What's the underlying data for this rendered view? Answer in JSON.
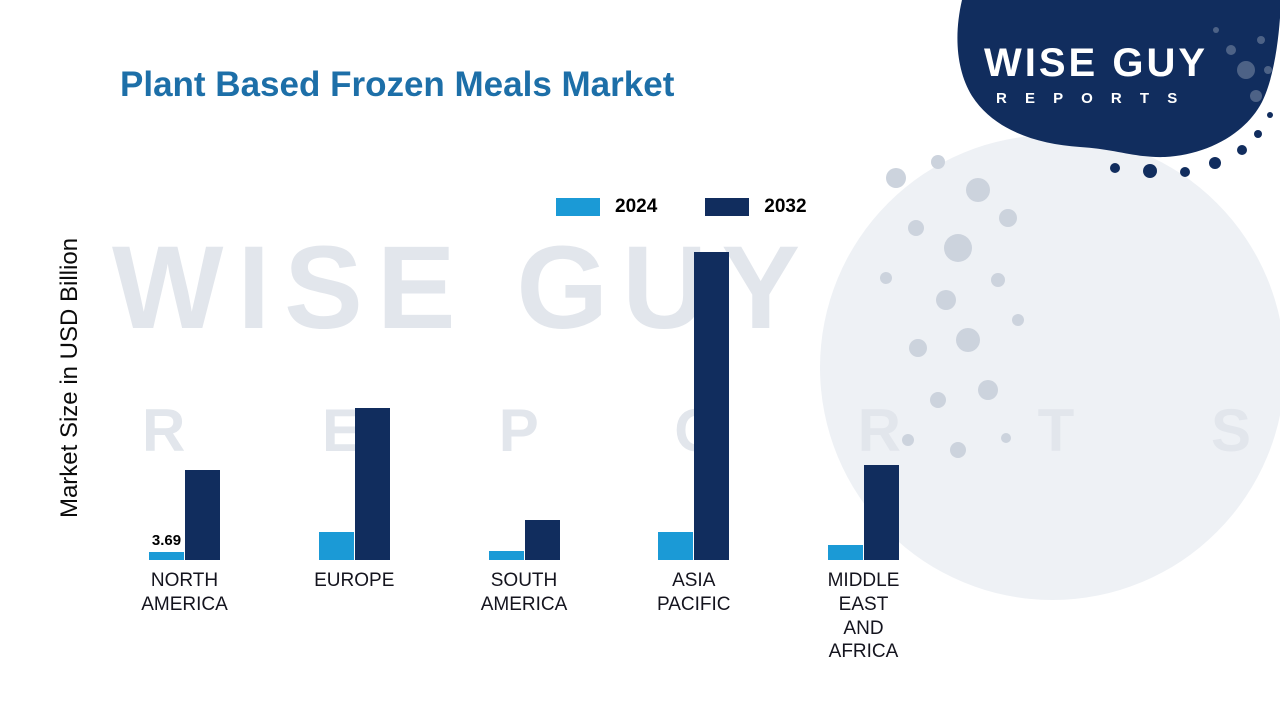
{
  "theme": {
    "title_color": "#1d6fa8",
    "logo_bg": "#112d5e",
    "watermark_color": "#e2e6ec"
  },
  "logo": {
    "name": "WISE GUY Reports",
    "line1": "WISE GUY",
    "line2": "R E P O R T S"
  },
  "watermark": {
    "line1": "WISE GUY",
    "line2": "R E P O R T S"
  },
  "chart_data": {
    "type": "bar",
    "title": "Plant Based Frozen Meals Market",
    "ylabel": "Market Size in USD Billion",
    "unit": "USD Billion",
    "categories": [
      "NORTH\nAMERICA",
      "EUROPE",
      "SOUTH\nAMERICA",
      "ASIA\nPACIFIC",
      "MIDDLE\nEAST\nAND\nAFRICA"
    ],
    "series": [
      {
        "name": "2024",
        "color": "#1b9ad6",
        "values": [
          3.69,
          13,
          4,
          13,
          7
        ]
      },
      {
        "name": "2032",
        "color": "#112d5e",
        "values": [
          41.5,
          70,
          18.4,
          142,
          44
        ]
      }
    ],
    "data_labels": [
      {
        "series": "2024",
        "category_index": 0,
        "text": "3.69"
      }
    ],
    "ylim": [
      0,
      142
    ],
    "legend_position": "top",
    "grid": false
  }
}
